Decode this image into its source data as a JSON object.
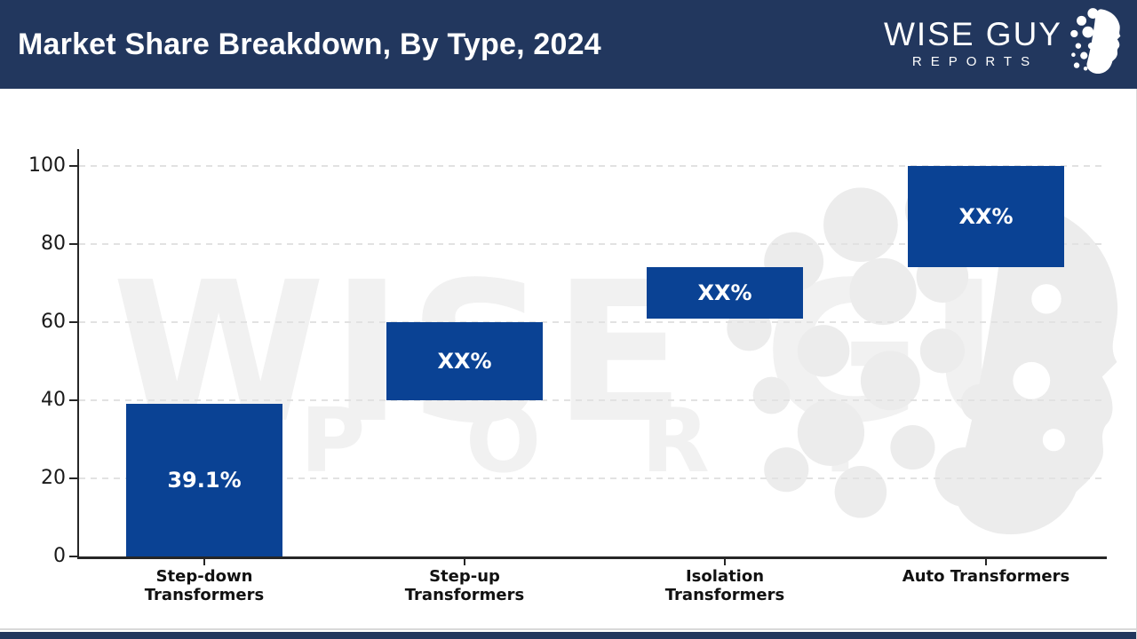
{
  "header": {
    "title": "Market Share Breakdown, By Type, 2024",
    "logo": {
      "line1": "WISE GUY",
      "line2": "REPORTS"
    }
  },
  "watermark": {
    "line1": "WISE GU",
    "line2": "P O R T S"
  },
  "chart_data": {
    "type": "bar",
    "subtype": "waterfall",
    "title": "Market Share Breakdown, By Type, 2024",
    "categories": [
      "Step-down Transformers",
      "Step-up Transformers",
      "Isolation Transformers",
      "Auto Transformers"
    ],
    "category_lines": [
      [
        "Step-down",
        "Transformers"
      ],
      [
        "Step-up",
        "Transformers"
      ],
      [
        "Isolation",
        "Transformers"
      ],
      [
        "Auto Transformers"
      ]
    ],
    "segments": [
      {
        "category": "Step-down Transformers",
        "label": "39.1%",
        "start": 0,
        "end": 39.1
      },
      {
        "category": "Step-up Transformers",
        "label": "XX%",
        "start": 40,
        "end": 60
      },
      {
        "category": "Isolation Transformers",
        "label": "XX%",
        "start": 61,
        "end": 74
      },
      {
        "category": "Auto Transformers",
        "label": "XX%",
        "start": 74,
        "end": 100
      }
    ],
    "xlabel": "",
    "ylabel": "",
    "ylim": [
      0,
      100
    ],
    "yticks": [
      0,
      20,
      40,
      60,
      80,
      100
    ],
    "grid": "horizontal-dashed",
    "legend": "none",
    "colors": {
      "bar": "#0a4294",
      "bar_label": "#ffffff",
      "header_bg": "#22375e",
      "footer_bg": "#22375e",
      "grid": "#e2e2e2",
      "axis": "#262626",
      "watermark": "#f0f0f0"
    }
  }
}
